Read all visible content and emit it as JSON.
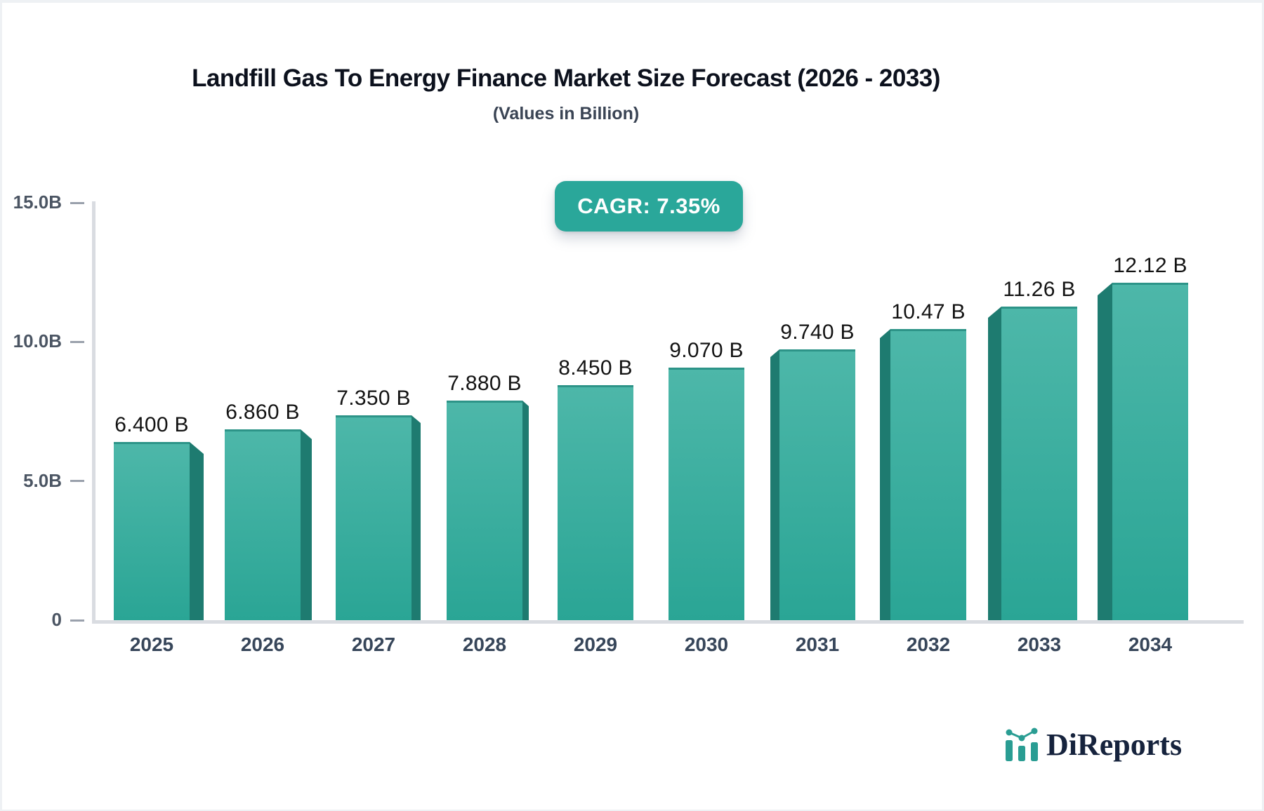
{
  "page": {
    "title": "Landfill Gas To Energy Finance Market Size Forecast (2026 - 2033)",
    "subtitle": "(Values in Billion)",
    "cagr_badge_label": "CAGR: 7.35%"
  },
  "chart_data": {
    "type": "bar",
    "title": "Landfill Gas To Energy Finance Market Size Forecast (2026 - 2033)",
    "subtitle": "(Values in Billion)",
    "cagr_percent": "7.35%",
    "unit": "Billion",
    "categories": [
      "2025",
      "2026",
      "2027",
      "2028",
      "2029",
      "2030",
      "2031",
      "2032",
      "2033",
      "2034"
    ],
    "values": [
      6.4,
      6.86,
      7.35,
      7.88,
      8.45,
      9.07,
      9.74,
      10.47,
      11.26,
      12.12
    ],
    "value_labels": [
      "6.400 B",
      "6.860 B",
      "7.350 B",
      "7.880 B",
      "8.450 B",
      "9.070 B",
      "9.740 B",
      "10.47 B",
      "11.26 B",
      "12.12 B"
    ],
    "y_ticks": [
      {
        "label": "15.0B",
        "value": 15
      },
      {
        "label": "10.0B",
        "value": 10
      },
      {
        "label": "5.0B",
        "value": 5
      },
      {
        "label": "0",
        "value": 0
      }
    ],
    "ylim": [
      0,
      15
    ],
    "grid": false,
    "legend": false
  },
  "branding": {
    "logo_text": "DiReports",
    "logo_icon": "bar-chart-logo-icon"
  },
  "colors": {
    "badge_bg": "#2aa79a",
    "badge_text": "#ffffff",
    "bar_face_top": "#4db7a9",
    "bar_face_bottom": "#2aa595",
    "bar_side": "#1e7b70",
    "bar_top_edge": "#2d9488",
    "axis_line": "#d9dce1",
    "tick_dash": "#9aa1ac",
    "y_label": "#4b5563",
    "x_label": "#37465a",
    "value_label": "#131313",
    "title": "#0c111d",
    "subtitle": "#3a4454",
    "logo_navy": "#16233d",
    "logo_teal": "#2a9d93",
    "card_bg": "#ffffff",
    "page_bg": "#eef1f4"
  }
}
